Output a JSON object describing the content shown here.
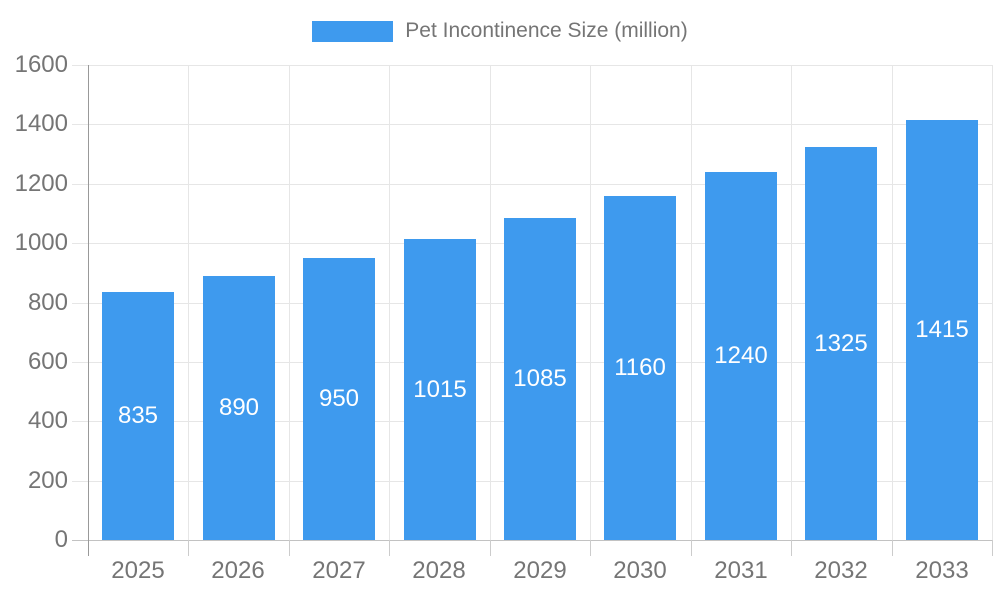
{
  "chart_data": {
    "type": "bar",
    "title": "Pet Incontinence Size (million)",
    "categories": [
      "2025",
      "2026",
      "2027",
      "2028",
      "2029",
      "2030",
      "2031",
      "2032",
      "2033"
    ],
    "values": [
      835,
      890,
      950,
      1015,
      1085,
      1160,
      1240,
      1325,
      1415
    ],
    "xlabel": "",
    "ylabel": "",
    "ylim": [
      0,
      1600
    ],
    "yticks": [
      0,
      200,
      400,
      600,
      800,
      1000,
      1200,
      1400,
      1600
    ],
    "grid": true,
    "legend_position": "top-center",
    "bar_label_position": "inside-middle"
  },
  "legend": {
    "label": "Pet Incontinence Size (million)"
  },
  "colors": {
    "bar": "#3E9AEE",
    "grid_line": "#e6e6e6",
    "y_axis_line": "#999999",
    "zero_line": "#c2c2c2",
    "tick": "#cccccc",
    "axis_text": "#757575",
    "legend_text": "#757575",
    "bar_label_text": "#ffffff",
    "background": "#ffffff"
  }
}
